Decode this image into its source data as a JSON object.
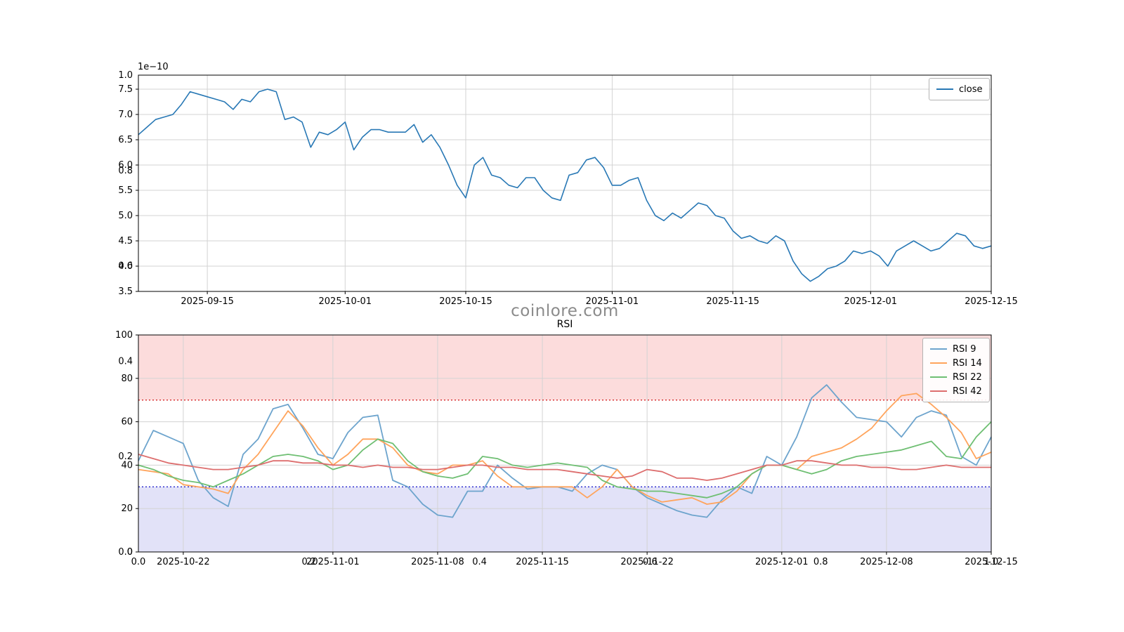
{
  "watermark": "coinlore.com",
  "rsi_title": "RSI",
  "top_offset_label": "1e−10",
  "colors": {
    "grid": "#d3d3d3",
    "spine": "#000000",
    "close": "#2878b5",
    "rsi9": "#6da4cd",
    "rsi14": "#ffa45c",
    "rsi22": "#6fbf73",
    "rsi42": "#dd6e6e",
    "overbought_fill": "#fcdcdc",
    "oversold_fill": "#e2e2f8",
    "overbought_line": "#d62728",
    "oversold_line": "#2424cc"
  },
  "overlay_axis": {
    "yticks": [
      "0.0",
      "0.2",
      "0.4",
      "0.6",
      "0.8",
      "1.0"
    ],
    "xticks": [
      "0.0",
      "0.2",
      "0.4",
      "0.6",
      "0.8",
      "1.0"
    ]
  },
  "chart_data": [
    {
      "type": "line",
      "title": "",
      "xlabel": "",
      "ylabel": "",
      "y_offset_label": "1e-10",
      "ylim": [
        3.5,
        7.78
      ],
      "grid": true,
      "legend_position": "upper right",
      "yticks": [
        3.5,
        4.0,
        4.5,
        5.0,
        5.5,
        6.0,
        6.5,
        7.0,
        7.5
      ],
      "xticks": [
        "2025-09-15",
        "2025-10-01",
        "2025-10-15",
        "2025-11-01",
        "2025-11-15",
        "2025-12-01",
        "2025-12-15"
      ],
      "x": [
        "2025-09-07",
        "2025-09-08",
        "2025-09-09",
        "2025-09-10",
        "2025-09-11",
        "2025-09-12",
        "2025-09-13",
        "2025-09-14",
        "2025-09-15",
        "2025-09-16",
        "2025-09-17",
        "2025-09-18",
        "2025-09-19",
        "2025-09-20",
        "2025-09-21",
        "2025-09-22",
        "2025-09-23",
        "2025-09-24",
        "2025-09-25",
        "2025-09-26",
        "2025-09-27",
        "2025-09-28",
        "2025-09-29",
        "2025-09-30",
        "2025-10-01",
        "2025-10-02",
        "2025-10-03",
        "2025-10-04",
        "2025-10-05",
        "2025-10-06",
        "2025-10-07",
        "2025-10-08",
        "2025-10-09",
        "2025-10-10",
        "2025-10-11",
        "2025-10-12",
        "2025-10-13",
        "2025-10-14",
        "2025-10-15",
        "2025-10-16",
        "2025-10-17",
        "2025-10-18",
        "2025-10-19",
        "2025-10-20",
        "2025-10-21",
        "2025-10-22",
        "2025-10-23",
        "2025-10-24",
        "2025-10-25",
        "2025-10-26",
        "2025-10-27",
        "2025-10-28",
        "2025-10-29",
        "2025-10-30",
        "2025-10-31",
        "2025-11-01",
        "2025-11-02",
        "2025-11-03",
        "2025-11-04",
        "2025-11-05",
        "2025-11-06",
        "2025-11-07",
        "2025-11-08",
        "2025-11-09",
        "2025-11-10",
        "2025-11-11",
        "2025-11-12",
        "2025-11-13",
        "2025-11-14",
        "2025-11-15",
        "2025-11-16",
        "2025-11-17",
        "2025-11-18",
        "2025-11-19",
        "2025-11-20",
        "2025-11-21",
        "2025-11-22",
        "2025-11-23",
        "2025-11-24",
        "2025-11-25",
        "2025-11-26",
        "2025-11-27",
        "2025-11-28",
        "2025-11-29",
        "2025-11-30",
        "2025-12-01",
        "2025-12-02",
        "2025-12-03",
        "2025-12-04",
        "2025-12-05",
        "2025-12-06",
        "2025-12-07",
        "2025-12-08",
        "2025-12-09",
        "2025-12-10",
        "2025-12-11",
        "2025-12-12",
        "2025-12-13",
        "2025-12-14",
        "2025-12-15"
      ],
      "series": [
        {
          "name": "close",
          "color": "#2878b5",
          "unit": "1e-10",
          "values": [
            6.6,
            6.75,
            6.9,
            6.95,
            7.0,
            7.2,
            7.45,
            7.4,
            7.35,
            7.3,
            7.25,
            7.1,
            7.3,
            7.25,
            7.45,
            7.5,
            7.45,
            6.9,
            6.95,
            6.85,
            6.35,
            6.65,
            6.6,
            6.7,
            6.85,
            6.3,
            6.55,
            6.7,
            6.7,
            6.65,
            6.65,
            6.65,
            6.8,
            6.45,
            6.6,
            6.35,
            6.0,
            5.6,
            5.35,
            6.0,
            6.15,
            5.8,
            5.75,
            5.6,
            5.55,
            5.75,
            5.75,
            5.5,
            5.35,
            5.3,
            5.8,
            5.85,
            6.1,
            6.15,
            5.95,
            5.6,
            5.6,
            5.7,
            5.75,
            5.3,
            5.0,
            4.9,
            5.05,
            4.95,
            5.1,
            5.25,
            5.2,
            5.0,
            4.95,
            4.7,
            4.55,
            4.6,
            4.5,
            4.45,
            4.6,
            4.5,
            4.1,
            3.85,
            3.7,
            3.8,
            3.95,
            4.0,
            4.1,
            4.3,
            4.25,
            4.3,
            4.2,
            4.0,
            4.3,
            4.4,
            4.5,
            4.4,
            4.3,
            4.35,
            4.5,
            4.65,
            4.6,
            4.4,
            4.35,
            4.4
          ]
        }
      ]
    },
    {
      "type": "line",
      "title": "RSI",
      "xlabel": "",
      "ylabel": "",
      "ylim": [
        0,
        100
      ],
      "grid": true,
      "legend_position": "upper right",
      "yticks": [
        0,
        20,
        40,
        60,
        80,
        100
      ],
      "xticks": [
        "2025-10-22",
        "2025-11-01",
        "2025-11-08",
        "2025-11-15",
        "2025-11-22",
        "2025-12-01",
        "2025-12-08",
        "2025-12-15"
      ],
      "bands": [
        {
          "name": "overbought-zone",
          "from": 70,
          "to": 100,
          "color": "#fcdcdc"
        },
        {
          "name": "oversold-zone",
          "from": 0,
          "to": 30,
          "color": "#e2e2f8"
        }
      ],
      "hlines": [
        {
          "name": "overbought-threshold",
          "y": 70,
          "color": "#d62728",
          "style": "dotted"
        },
        {
          "name": "oversold-threshold",
          "y": 30,
          "color": "#2424cc",
          "style": "dotted"
        }
      ],
      "x": [
        "2025-10-19",
        "2025-10-20",
        "2025-10-21",
        "2025-10-22",
        "2025-10-23",
        "2025-10-24",
        "2025-10-25",
        "2025-10-26",
        "2025-10-27",
        "2025-10-28",
        "2025-10-29",
        "2025-10-30",
        "2025-10-31",
        "2025-11-01",
        "2025-11-02",
        "2025-11-03",
        "2025-11-04",
        "2025-11-05",
        "2025-11-06",
        "2025-11-07",
        "2025-11-08",
        "2025-11-09",
        "2025-11-10",
        "2025-11-11",
        "2025-11-12",
        "2025-11-13",
        "2025-11-14",
        "2025-11-15",
        "2025-11-16",
        "2025-11-17",
        "2025-11-18",
        "2025-11-19",
        "2025-11-20",
        "2025-11-21",
        "2025-11-22",
        "2025-11-23",
        "2025-11-24",
        "2025-11-25",
        "2025-11-26",
        "2025-11-27",
        "2025-11-28",
        "2025-11-29",
        "2025-11-30",
        "2025-12-01",
        "2025-12-02",
        "2025-12-03",
        "2025-12-04",
        "2025-12-05",
        "2025-12-06",
        "2025-12-07",
        "2025-12-08",
        "2025-12-09",
        "2025-12-10",
        "2025-12-11",
        "2025-12-12",
        "2025-12-13",
        "2025-12-14",
        "2025-12-15"
      ],
      "series": [
        {
          "name": "RSI 9",
          "color": "#6da4cd",
          "values": [
            42,
            56,
            53,
            50,
            33,
            25,
            21,
            45,
            52,
            66,
            68,
            57,
            45,
            43,
            55,
            62,
            63,
            33,
            30,
            22,
            17,
            16,
            28,
            28,
            40,
            34,
            29,
            30,
            30,
            28,
            36,
            40,
            38,
            30,
            25,
            22,
            19,
            17,
            16,
            24,
            30,
            27,
            44,
            40,
            53,
            71,
            77,
            69,
            62,
            61,
            60,
            53,
            62,
            65,
            63,
            44,
            40,
            53
          ]
        },
        {
          "name": "RSI 14",
          "color": "#ffa45c",
          "values": [
            38,
            37,
            36,
            31,
            30,
            29,
            27,
            38,
            45,
            55,
            65,
            58,
            48,
            40,
            45,
            52,
            52,
            48,
            40,
            37,
            36,
            40,
            40,
            42,
            35,
            30,
            30,
            30,
            30,
            30,
            25,
            30,
            38,
            30,
            26,
            23,
            24,
            25,
            22,
            23,
            28,
            36,
            40,
            40,
            38,
            44,
            46,
            48,
            52,
            57,
            65,
            72,
            73,
            68,
            62,
            55,
            43,
            46
          ]
        },
        {
          "name": "RSI 22",
          "color": "#6fbf73",
          "values": [
            40,
            38,
            35,
            33,
            32,
            30,
            33,
            36,
            40,
            44,
            45,
            44,
            42,
            38,
            40,
            47,
            52,
            50,
            42,
            37,
            35,
            34,
            36,
            44,
            43,
            40,
            39,
            40,
            41,
            40,
            39,
            33,
            30,
            29,
            28,
            28,
            27,
            26,
            25,
            27,
            30,
            36,
            40,
            40,
            38,
            36,
            38,
            42,
            44,
            45,
            46,
            47,
            49,
            51,
            44,
            43,
            53,
            60
          ]
        },
        {
          "name": "RSI 42",
          "color": "#dd6e6e",
          "values": [
            45,
            43,
            41,
            40,
            39,
            38,
            38,
            39,
            40,
            42,
            42,
            41,
            41,
            40,
            40,
            39,
            40,
            39,
            39,
            38,
            38,
            39,
            40,
            40,
            39,
            39,
            38,
            38,
            38,
            37,
            36,
            35,
            34,
            35,
            38,
            37,
            34,
            34,
            33,
            34,
            36,
            38,
            40,
            40,
            42,
            42,
            41,
            40,
            40,
            39,
            39,
            38,
            38,
            39,
            40,
            39,
            39,
            39
          ]
        }
      ]
    }
  ]
}
